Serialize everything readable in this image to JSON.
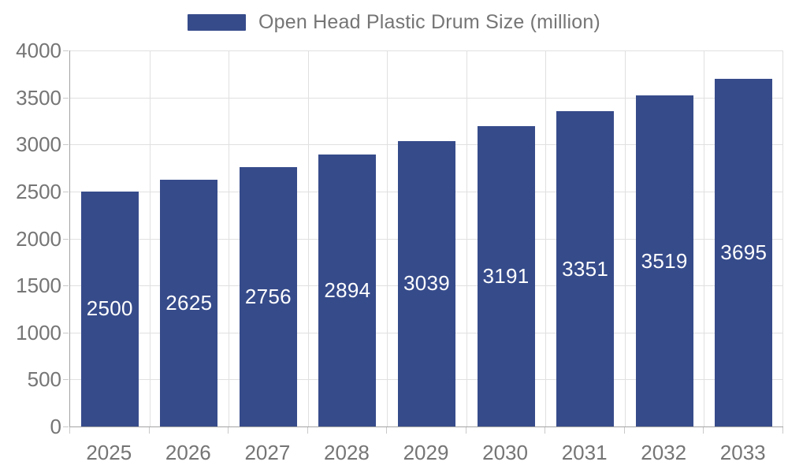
{
  "legend": {
    "label": "Open Head Plastic Drum Size (million)"
  },
  "chart_data": {
    "type": "bar",
    "title": "",
    "series_name": "Open Head Plastic Drum Size (million)",
    "categories": [
      "2025",
      "2026",
      "2027",
      "2028",
      "2029",
      "2030",
      "2031",
      "2032",
      "2033"
    ],
    "values": [
      2500,
      2625,
      2756,
      2894,
      3039,
      3191,
      3351,
      3519,
      3695
    ],
    "xlabel": "",
    "ylabel": "",
    "ylim": [
      0,
      4000
    ],
    "yticks": [
      0,
      500,
      1000,
      1500,
      2000,
      2500,
      3000,
      3500,
      4000
    ],
    "grid": true,
    "legend_position": "top-center",
    "bar_color": "#364b8a",
    "bar_label_color": "#ffffff",
    "axis_text_color": "#757575",
    "grid_color": "#e0e0e0",
    "axis_line_color": "#a3a3a3",
    "tick_color": "#c9c9c9"
  }
}
